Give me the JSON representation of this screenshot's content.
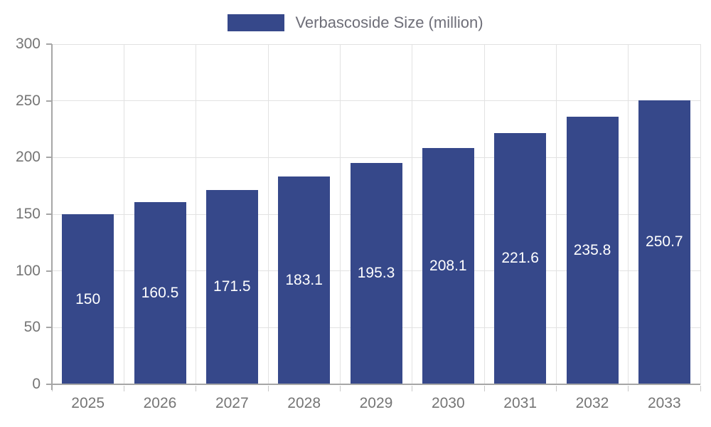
{
  "legend": {
    "label": "Verbascoside Size (million)"
  },
  "chart_data": {
    "type": "bar",
    "title": "Verbascoside Size (million)",
    "categories": [
      "2025",
      "2026",
      "2027",
      "2028",
      "2029",
      "2030",
      "2031",
      "2032",
      "2033"
    ],
    "values": [
      150,
      160.5,
      171.5,
      183.1,
      195.3,
      208.1,
      221.6,
      235.8,
      250.7
    ],
    "value_labels": [
      "150",
      "160.5",
      "171.5",
      "183.1",
      "195.3",
      "208.1",
      "221.6",
      "235.8",
      "250.7"
    ],
    "xlabel": "",
    "ylabel": "",
    "ylim": [
      0,
      300
    ],
    "yticks": [
      0,
      50,
      100,
      150,
      200,
      250,
      300
    ],
    "grid": true,
    "legend_position": "top"
  },
  "colors": {
    "bar": "#36488a",
    "value_label": "#ffffff",
    "grid": "#e2e2e2",
    "axis": "#a6a6a6",
    "tick_mark_x": "#c9c9c9",
    "tick_text": "#757575",
    "legend_text": "#6e6e78"
  }
}
